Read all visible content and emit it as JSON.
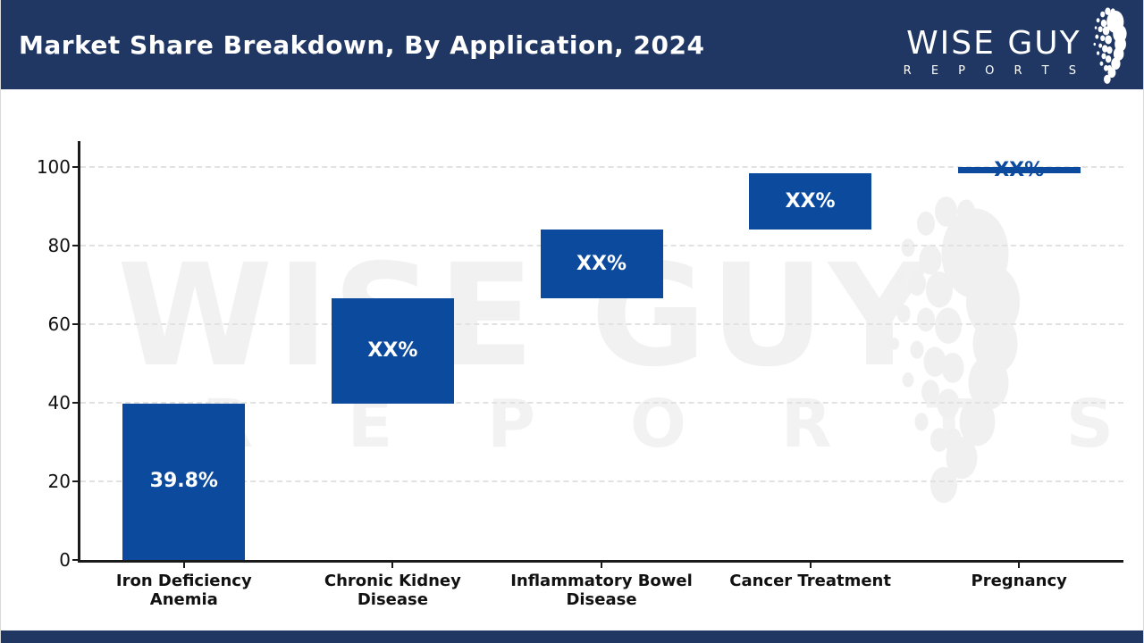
{
  "header": {
    "title": "Market Share Breakdown, By Application, 2024",
    "bg_color": "#203763",
    "logo": {
      "line1": "WISE GUY",
      "line2": "R E P O R T S"
    }
  },
  "watermark": {
    "line1": "WISE GUY",
    "line2": "R E P O R T S"
  },
  "chart_data": {
    "type": "bar",
    "subtype": "floating-waterfall",
    "title": "Market Share Breakdown, By Application, 2024",
    "categories": [
      "Iron Deficiency Anemia",
      "Chronic Kidney Disease",
      "Inflammatory Bowel Disease",
      "Cancer Treatment",
      "Pregnancy"
    ],
    "category_lines": [
      [
        "Iron Deficiency",
        "Anemia"
      ],
      [
        "Chronic Kidney",
        "Disease"
      ],
      [
        "Inflammatory Bowel",
        "Disease"
      ],
      [
        "Cancer Treatment"
      ],
      [
        "Pregnancy"
      ]
    ],
    "segments": [
      {
        "category": "Iron Deficiency Anemia",
        "start": 0,
        "end": 39.8,
        "label": "39.8%",
        "label_color": "#ffffff"
      },
      {
        "category": "Chronic Kidney Disease",
        "start": 39.8,
        "end": 66.5,
        "label": "XX%",
        "label_color": "#ffffff"
      },
      {
        "category": "Inflammatory Bowel Disease",
        "start": 66.5,
        "end": 84.0,
        "label": "XX%",
        "label_color": "#ffffff"
      },
      {
        "category": "Cancer Treatment",
        "start": 84.0,
        "end": 98.3,
        "label": "XX%",
        "label_color": "#ffffff"
      },
      {
        "category": "Pregnancy",
        "start": 98.3,
        "end": 100.0,
        "label": "XX%",
        "label_color": "#0c4a9e"
      }
    ],
    "ylim": [
      0,
      100
    ],
    "yticks": [
      0,
      20,
      40,
      60,
      80,
      100
    ],
    "xlabel": "",
    "ylabel": "",
    "grid": "horizontal-dashed",
    "legend": "none",
    "bar_color": "#0c4a9e",
    "axis_color": "#1a1a1a",
    "gridline_color": "#e2e2e2"
  },
  "footer": {
    "bg_color": "#203763"
  }
}
